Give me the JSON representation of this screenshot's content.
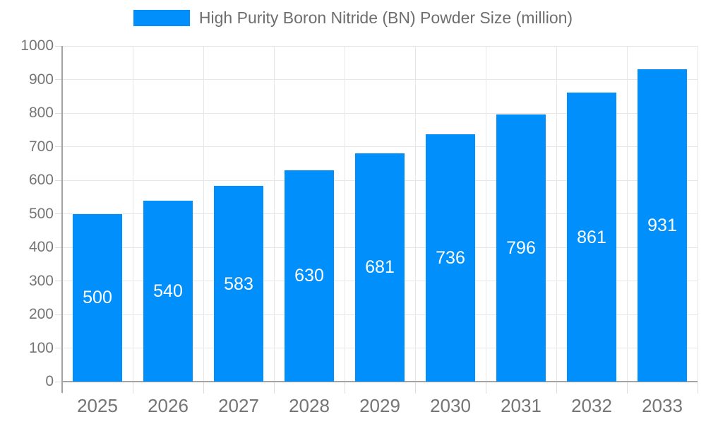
{
  "chart_data": {
    "type": "bar",
    "title": "High Purity Boron Nitride (BN) Powder Size (million)",
    "legend": {
      "position": "top",
      "entries": [
        "High Purity Boron Nitride (BN) Powder Size (million)"
      ]
    },
    "categories": [
      "2025",
      "2026",
      "2027",
      "2028",
      "2029",
      "2030",
      "2031",
      "2032",
      "2033"
    ],
    "values": [
      500,
      540,
      583,
      630,
      681,
      736,
      796,
      861,
      931
    ],
    "bar_labels": [
      "500",
      "540",
      "583",
      "630",
      "681",
      "736",
      "796",
      "861",
      "931"
    ],
    "xlabel": "",
    "ylabel": "",
    "ylim": [
      0,
      1000
    ],
    "ytick_step": 100,
    "ytick_labels": [
      "0",
      "100",
      "200",
      "300",
      "400",
      "500",
      "600",
      "700",
      "800",
      "900",
      "1000"
    ],
    "grid": true,
    "colors": {
      "bar": "#008FFB",
      "bar_label": "#ffffff",
      "axis_label": "#757575",
      "title_text": "#6e6e6e",
      "gridline": "#e7e7e7",
      "tick": "#dcdcdc",
      "axis_line": "#a3a3a3",
      "background": "#ffffff"
    }
  }
}
